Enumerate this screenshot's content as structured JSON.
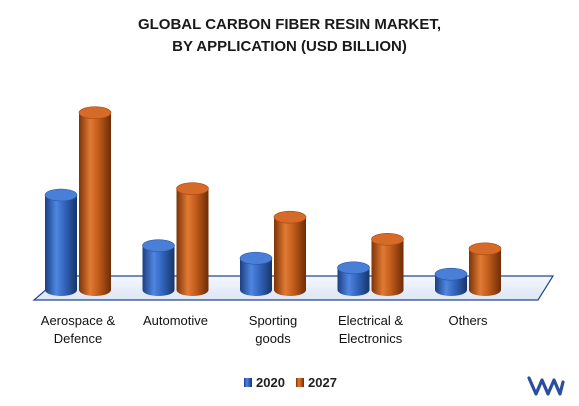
{
  "chart_data": {
    "type": "bar",
    "title_lines": [
      "GLOBAL CARBON FIBER RESIN MARKET,",
      "BY APPLICATION (USD BILLION)"
    ],
    "categories": [
      [
        "Aerospace &",
        "Defence"
      ],
      [
        "Automotive"
      ],
      [
        "Sporting",
        "goods"
      ],
      [
        "Electrical &",
        "Electronics"
      ],
      [
        "Others"
      ]
    ],
    "series": [
      {
        "name": "2020",
        "color": "#2f5fb3",
        "values": [
          3.0,
          1.4,
          1.0,
          0.7,
          0.5
        ]
      },
      {
        "name": "2027",
        "color": "#c0581a",
        "values": [
          5.6,
          3.2,
          2.3,
          1.6,
          1.3
        ]
      }
    ],
    "ylim": [
      0,
      6
    ],
    "grid": false,
    "legend_position": "bottom",
    "style": "3d-cylinder"
  },
  "branding": {
    "logo": "vmr-logo",
    "color": "#2b4fa0"
  }
}
